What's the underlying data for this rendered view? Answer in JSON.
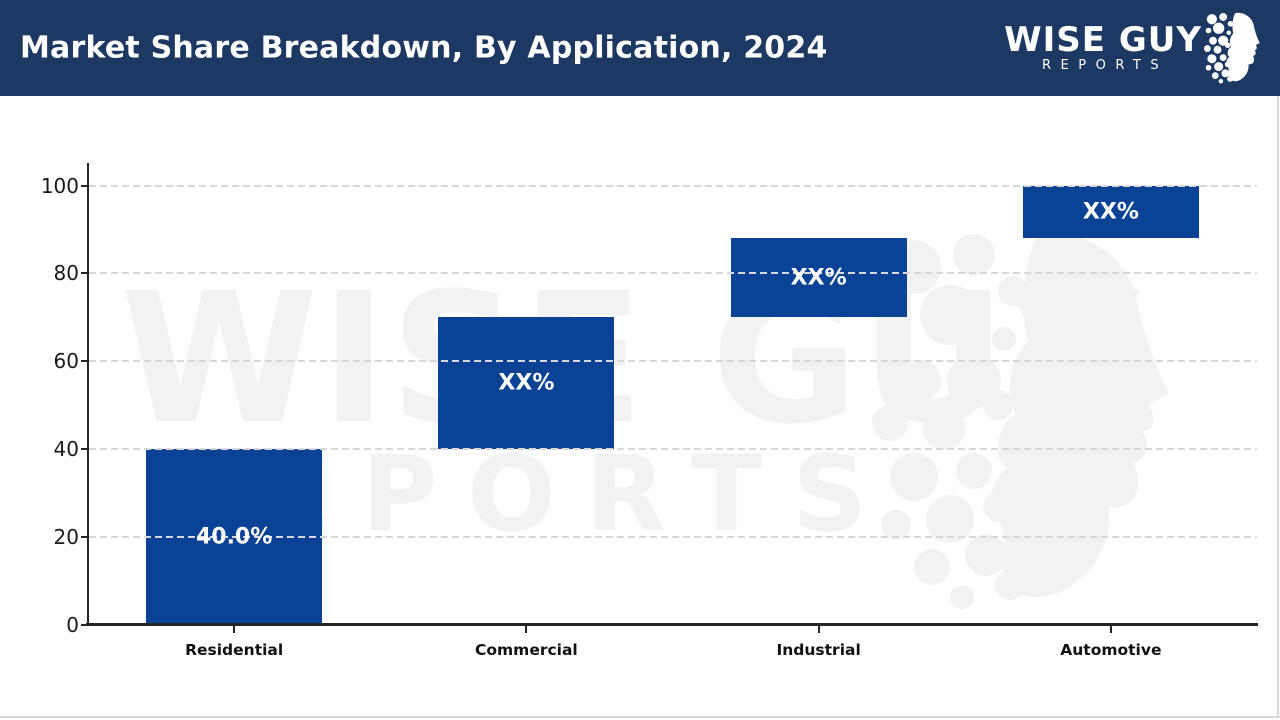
{
  "header": {
    "title": "Market Share Breakdown, By Application, 2024",
    "logo": {
      "line1": "WISE GUY",
      "line2": "REPORTS"
    }
  },
  "watermark": {
    "line1": "WISE GUY",
    "line2": "REPORTS"
  },
  "chart_data": {
    "type": "bar",
    "subtype": "waterfall",
    "title": "Market Share Breakdown, By Application, 2024",
    "categories": [
      "Residential",
      "Commercial",
      "Industrial",
      "Automotive"
    ],
    "segments": [
      {
        "category": "Residential",
        "start": 0,
        "end": 40,
        "label": "40.0%"
      },
      {
        "category": "Commercial",
        "start": 40,
        "end": 70,
        "label": "XX%"
      },
      {
        "category": "Industrial",
        "start": 70,
        "end": 88,
        "label": "XX%"
      },
      {
        "category": "Automotive",
        "start": 88,
        "end": 100,
        "label": "XX%"
      }
    ],
    "xlabel": "",
    "ylabel": "",
    "ylim": [
      0,
      100
    ],
    "yticks": [
      "0",
      "20",
      "40",
      "60",
      "80",
      "100"
    ],
    "grid": "horizontal-dashed",
    "legend": "none",
    "bar_color": "#0a4296",
    "bar_label_color": "#ffffff",
    "grid_color": "#d8d8d8",
    "axis_color": "#262626",
    "header_color": "#1e3864",
    "watermark_color": "#f1f2f4"
  }
}
